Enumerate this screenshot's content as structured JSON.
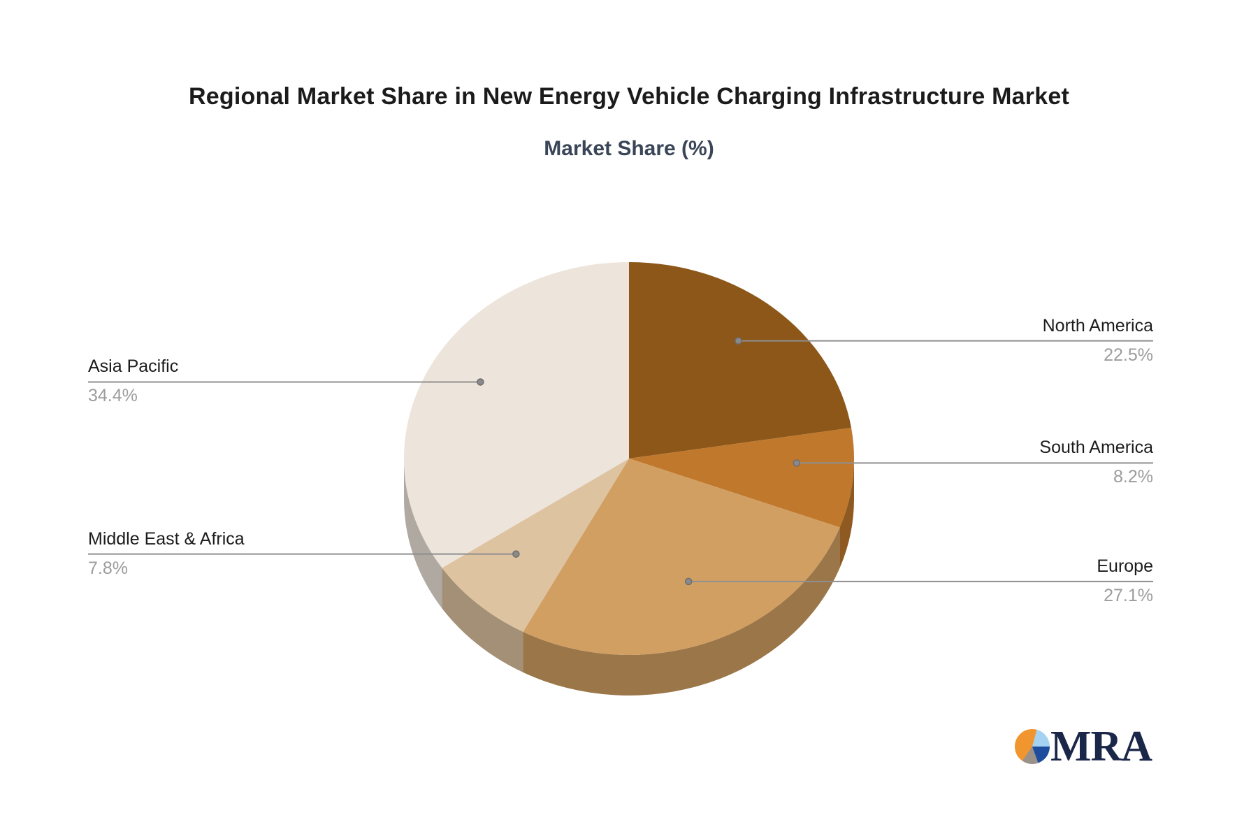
{
  "title": "Regional Market Share in New Energy Vehicle Charging Infrastructure Market",
  "subtitle": "Market Share (%)",
  "chart_data": {
    "type": "pie",
    "title": "Regional Market Share in New Energy Vehicle Charging Infrastructure Market",
    "subtitle": "Market Share (%)",
    "unit": "%",
    "style": "3d-depth pie, no legend, leader-line labels (name above line, percent below)",
    "order": "clockwise from 12 o'clock",
    "slices": [
      {
        "label": "North America",
        "value": 22.5,
        "display": "22.5%",
        "color": "#8D571A"
      },
      {
        "label": "South America",
        "value": 8.2,
        "display": "8.2%",
        "color": "#C0792C"
      },
      {
        "label": "Europe",
        "value": 27.1,
        "display": "27.1%",
        "color": "#D29F63"
      },
      {
        "label": "Middle East & Africa",
        "value": 7.8,
        "display": "7.8%",
        "color": "#DDC3A0"
      },
      {
        "label": "Asia Pacific",
        "value": 34.4,
        "display": "34.4%",
        "color": "#EDE4DB"
      }
    ],
    "colors": {
      "label_text": "#1c1c1c",
      "value_text": "#9c9c9c",
      "leader_line": "#8f8f8f",
      "leader_dot": "#8a8a8a",
      "title_text": "#1b1b1b",
      "subtitle_text": "#3a4557"
    }
  },
  "logo": {
    "text": "MRA",
    "text_color": "#1b2749",
    "pie_colors": {
      "orange": "#F1952F",
      "light_blue": "#A6D2F2",
      "dark_blue": "#1F4D9E",
      "gray": "#9A9189"
    }
  }
}
